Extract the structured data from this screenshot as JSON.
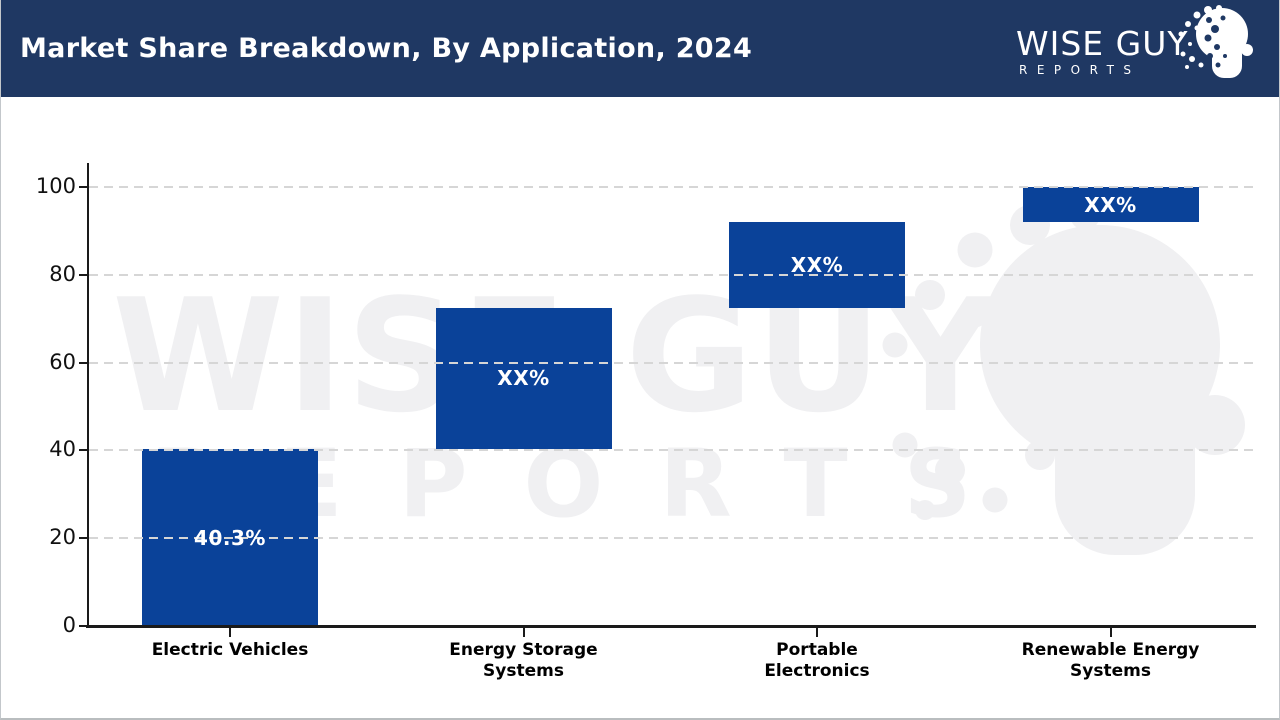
{
  "header": {
    "title": "Market Share Breakdown, By Application, 2024",
    "logo": {
      "wordmark": "WISE GUY",
      "subtext": "REPORTS"
    }
  },
  "watermark": {
    "line1": "WISE GUY",
    "line2": "REPORTS"
  },
  "colors": {
    "header_bg": "#1f3863",
    "bar_blue": "#0a4299",
    "watermark_gray": "#f0f0f2",
    "gridline_gray": "#d6d6d6",
    "axis_black": "#1a1a1a"
  },
  "chart_data": {
    "type": "bar",
    "subtype": "floating-waterfall",
    "title": "Market Share Breakdown, By Application, 2024",
    "xlabel": "",
    "ylabel": "",
    "categories": [
      "Electric Vehicles",
      "Energy Storage\nSystems",
      "Portable\nElectronics",
      "Renewable Energy\nSystems"
    ],
    "segments": [
      {
        "category": "Electric Vehicles",
        "start": 0,
        "end": 40.3,
        "label": "40.3%"
      },
      {
        "category": "Energy Storage Systems",
        "start": 40.3,
        "end": 72.5,
        "label": "XX%"
      },
      {
        "category": "Portable Electronics",
        "start": 72.5,
        "end": 92,
        "label": "XX%"
      },
      {
        "category": "Renewable Energy Systems",
        "start": 92,
        "end": 100,
        "label": "XX%"
      }
    ],
    "yticks": [
      0,
      20,
      40,
      60,
      80,
      100
    ],
    "ylim": [
      0,
      105
    ],
    "grid": "horizontal-dashed-over-bars",
    "legend": "none",
    "bar_color": "#0a4299"
  }
}
